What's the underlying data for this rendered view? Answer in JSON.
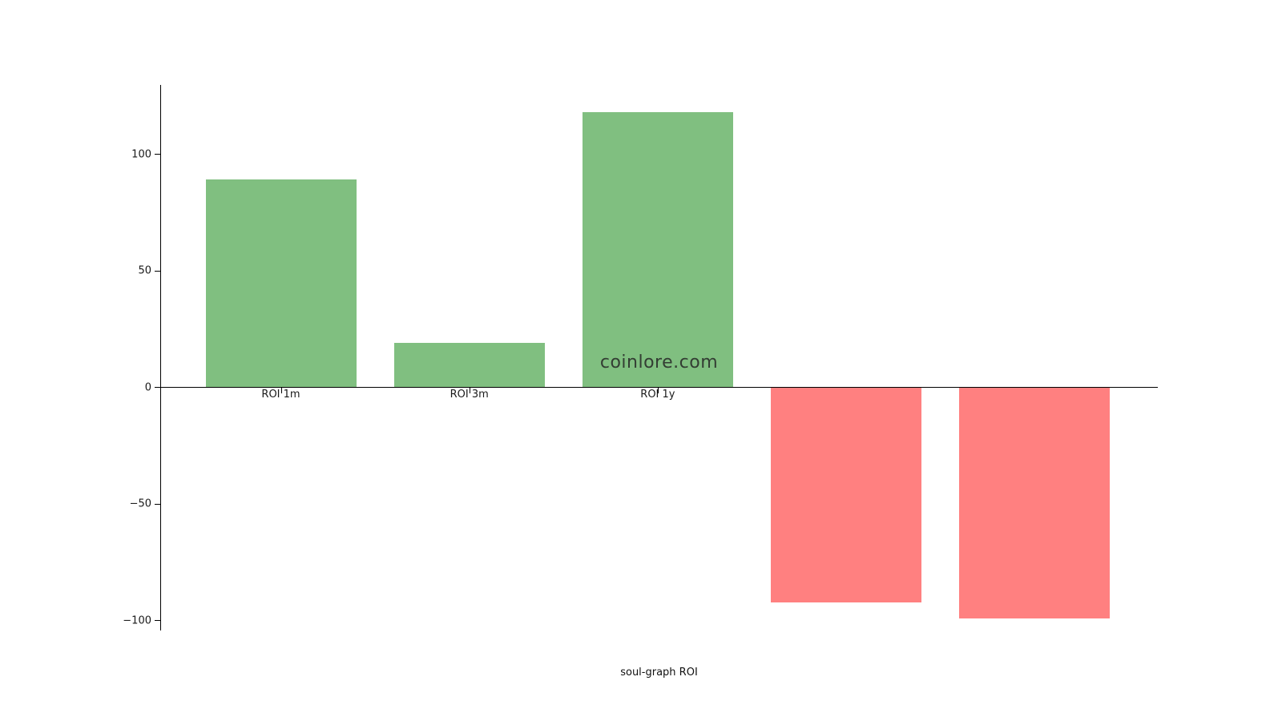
{
  "chart_data": {
    "type": "bar",
    "title": "",
    "xlabel": "soul-graph ROI",
    "ylabel": "",
    "watermark": "coinlore.com",
    "bars": [
      {
        "label": "ROI 1m",
        "value": 89
      },
      {
        "label": "ROI 3m",
        "value": 19
      },
      {
        "label": "ROI 1y",
        "value": 118
      },
      {
        "label": "",
        "value": -92
      },
      {
        "label": "",
        "value": -99
      }
    ],
    "y_ticks": [
      {
        "label": "100",
        "value": 100
      },
      {
        "label": "50",
        "value": 50
      },
      {
        "label": "0",
        "value": 0
      },
      {
        "label": "−50",
        "value": -50
      },
      {
        "label": "−100",
        "value": -100
      }
    ],
    "ylim": [
      -105,
      130
    ],
    "grid": false,
    "legend_position": "none",
    "positive_color": "#80bf80",
    "negative_color": "#ff8080",
    "axis_color": "#000000"
  }
}
